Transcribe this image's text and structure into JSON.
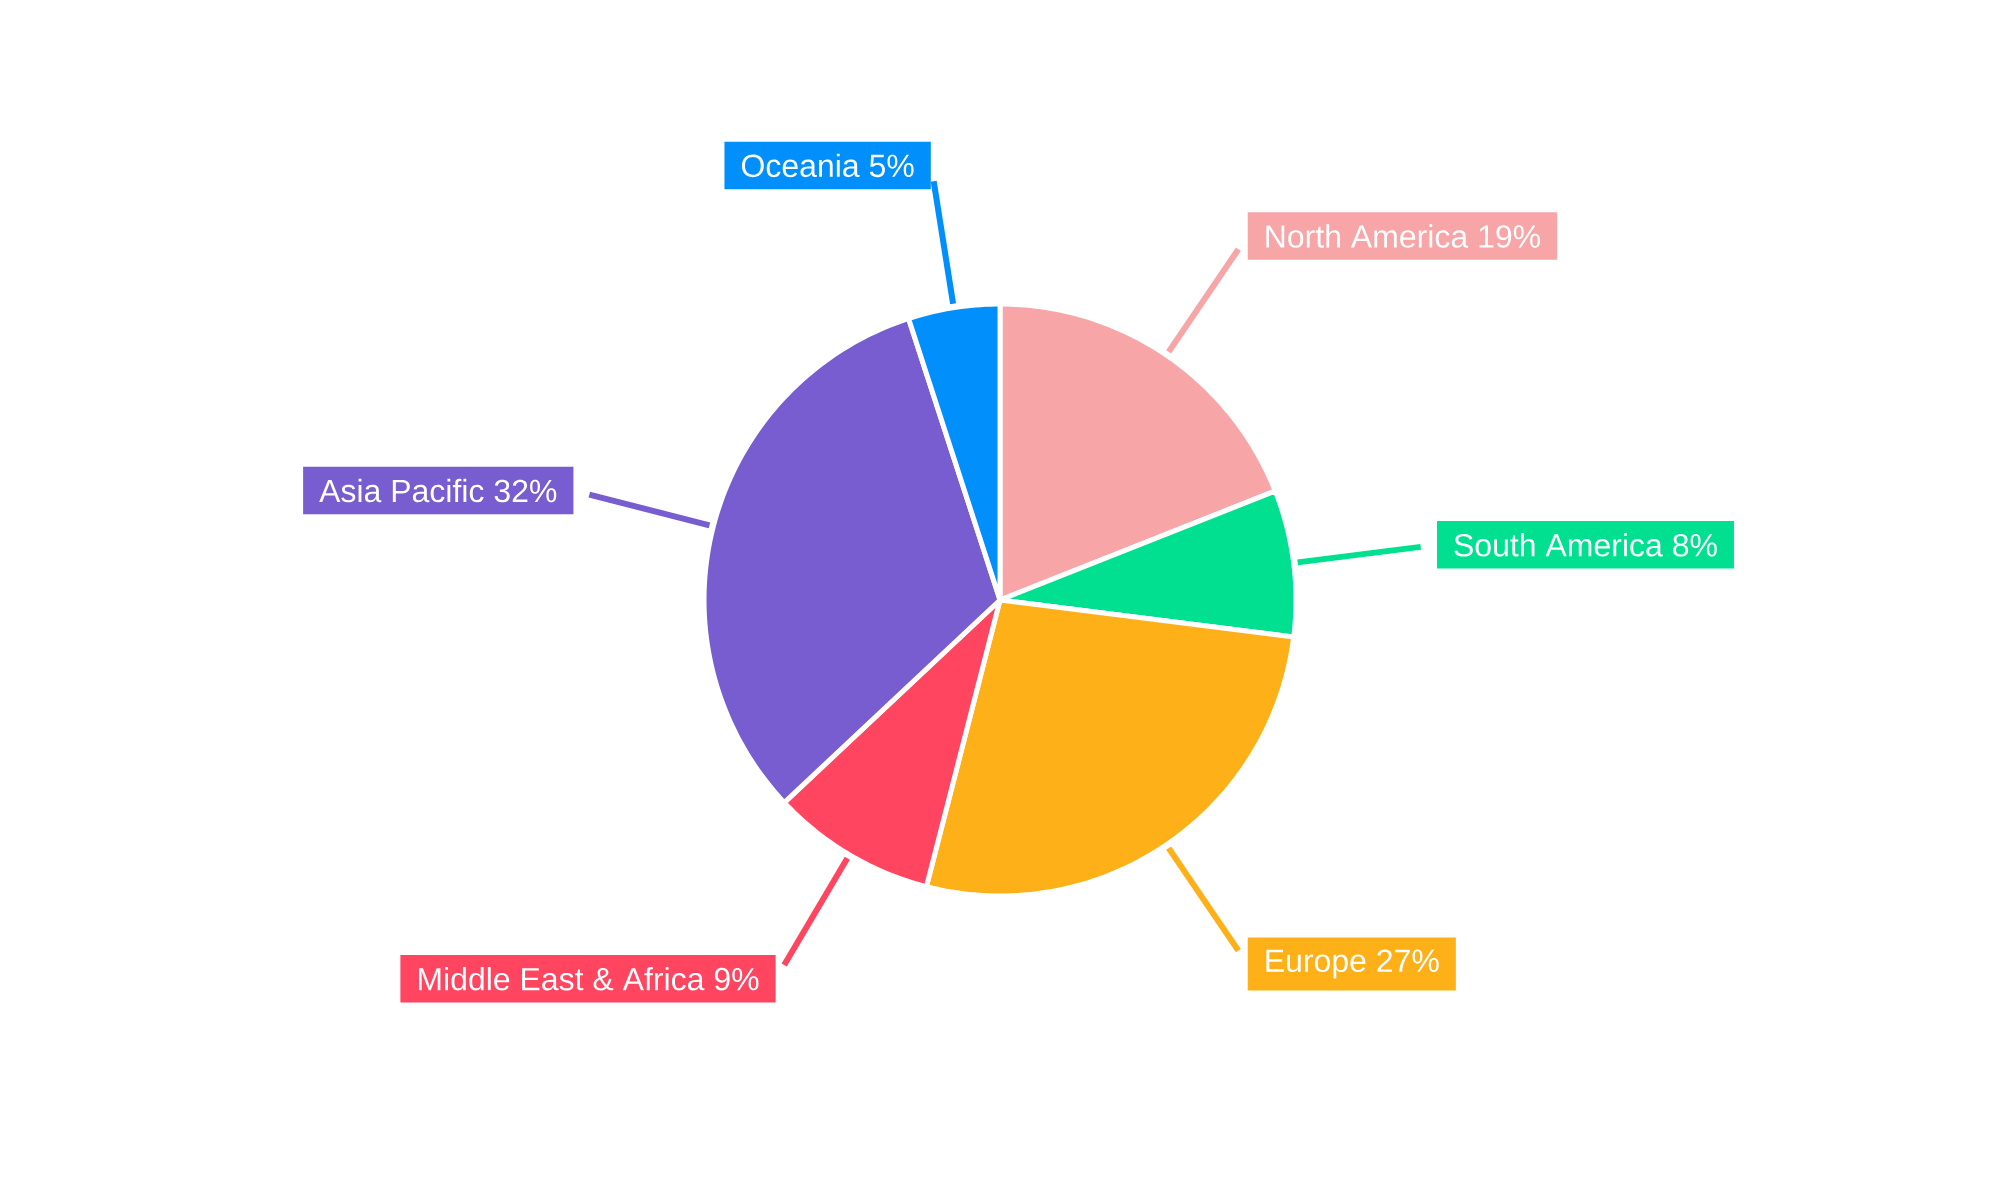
{
  "chart_data": {
    "type": "pie",
    "categories": [
      "North America",
      "South America",
      "Europe",
      "Middle East & Africa",
      "Asia Pacific",
      "Oceania"
    ],
    "values": [
      19,
      8,
      27,
      9,
      32,
      5
    ],
    "value_labels": [
      "19%",
      "8%",
      "27%",
      "9%",
      "32%",
      "5%"
    ],
    "colors": [
      "#f8a5a8",
      "#00e090",
      "#feb019",
      "#ff4560",
      "#775dd0",
      "#008ffb"
    ]
  }
}
